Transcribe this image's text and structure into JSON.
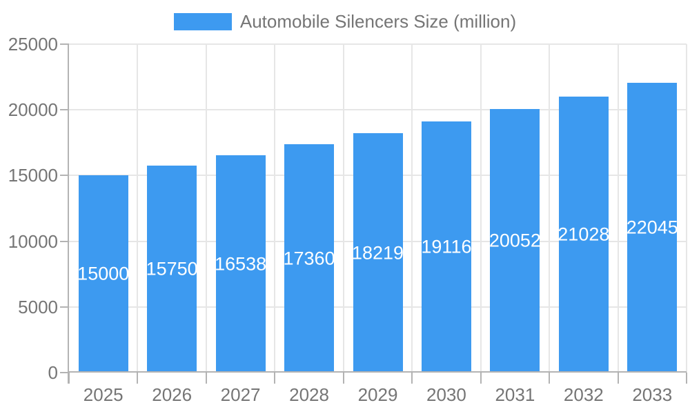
{
  "legend": {
    "label": "Automobile Silencers Size (million)"
  },
  "colors": {
    "bar": "#3d9af0",
    "bar_label_text": "#ffffff",
    "axis": "#b3b3b3",
    "grid": "#e6e6e6",
    "text": "#757575",
    "background": "#ffffff"
  },
  "chart_data": {
    "type": "bar",
    "title": "Automobile Silencers Size (million)",
    "categories": [
      "2025",
      "2026",
      "2027",
      "2028",
      "2029",
      "2030",
      "2031",
      "2032",
      "2033"
    ],
    "values": [
      15000,
      15750,
      16538,
      17360,
      18219,
      19116,
      20052,
      21028,
      22045
    ],
    "xlabel": "",
    "ylabel": "",
    "ylim": [
      0,
      25000
    ],
    "yticks": [
      0,
      5000,
      10000,
      15000,
      20000,
      25000
    ],
    "grid": true,
    "legend_position": "top-center",
    "bar_label_position": "inside-center"
  }
}
